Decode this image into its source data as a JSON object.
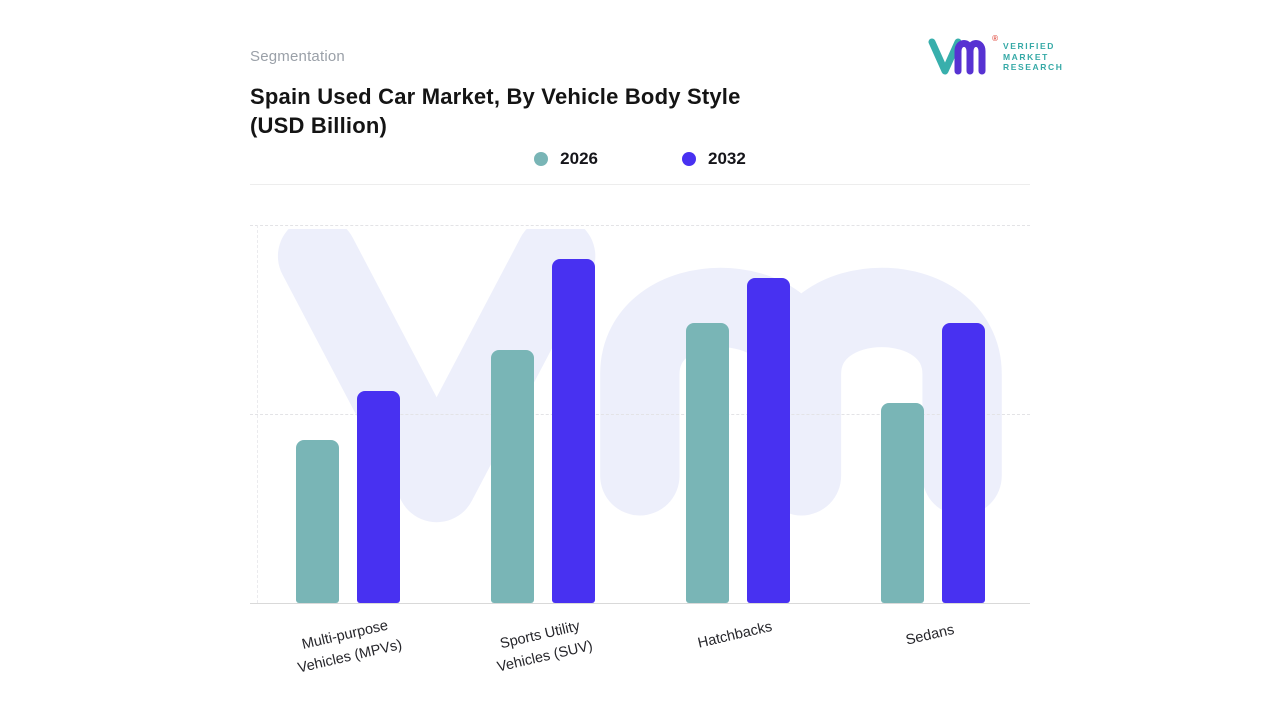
{
  "header": {
    "eyebrow": "Segmentation",
    "title_lines": [
      "Spain Used Car Market, By Vehicle Body Style",
      "(USD Billion)"
    ]
  },
  "logo": {
    "text_lines": [
      "VERIFIED",
      "MARKET",
      "RESEARCH"
    ],
    "registered_mark": "®",
    "teal": "#38afac",
    "purple": "#5732d2",
    "registered_color": "#e2574c",
    "text_color": "#35a9a6"
  },
  "chart_data": {
    "type": "bar",
    "title": "Spain Used Car Market, By Vehicle Body Style (USD Billion)",
    "categories": [
      "Multi-purpose Vehicles (MPVs)",
      "Sports Utility Vehicles (SUV)",
      "Hatchbacks",
      "Sedans"
    ],
    "category_lines": [
      [
        "Multi-purpose",
        "Vehicles (MPVs)"
      ],
      [
        "Sports Utility",
        "Vehicles (SUV)"
      ],
      [
        "Hatchbacks"
      ],
      [
        "Sedans"
      ]
    ],
    "series": [
      {
        "name": "2026",
        "color": "#79b5b6",
        "values": [
          43,
          67,
          74,
          53
        ]
      },
      {
        "name": "2032",
        "color": "#4831f1",
        "values": [
          56,
          91,
          86,
          74
        ]
      }
    ],
    "ylim": [
      0,
      100
    ],
    "xlabel": "",
    "ylabel": "",
    "grid": "horizontal-dashed",
    "legend_position": "top-center",
    "watermark_color": "#edeffb",
    "background": "#ffffff"
  }
}
